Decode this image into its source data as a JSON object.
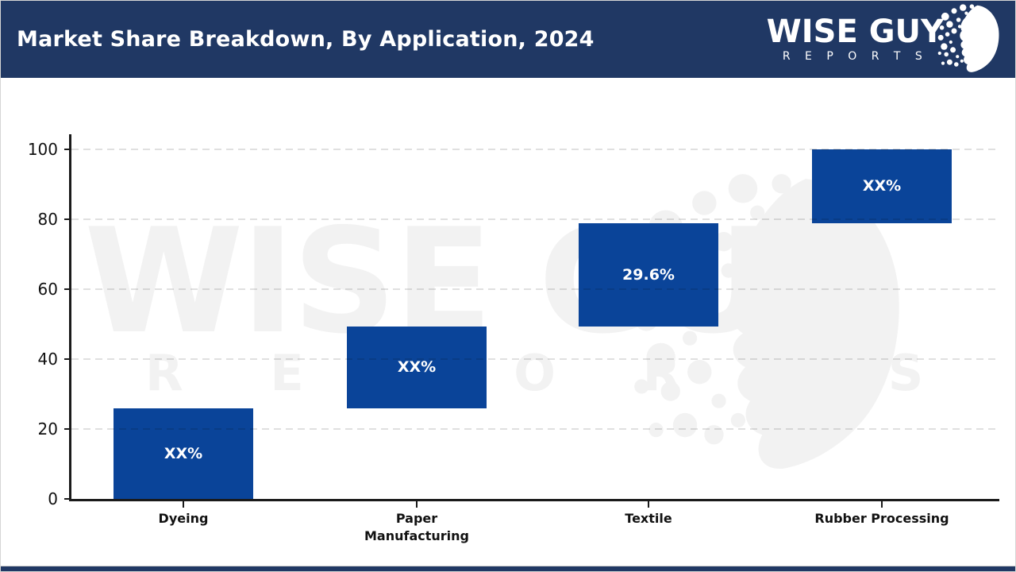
{
  "header": {
    "title": "Market Share Breakdown, By Application, 2024",
    "brand": {
      "name": "WISE GUY",
      "sub": "R E P O R T S"
    }
  },
  "watermark": {
    "line1": "WISE GUY",
    "line2": "R E P O R T S"
  },
  "colors": {
    "header_bg": "#203864",
    "footer_bg": "#203864",
    "bar": "#0a4499",
    "bar_label": "#ffffff",
    "axis": "#1a1a1a",
    "watermark": "#f2f2f2"
  },
  "chart_data": {
    "type": "bar",
    "subtype": "waterfall",
    "title": "Market Share Breakdown, By Application, 2024",
    "categories": [
      "Dyeing",
      "Paper\nManufacturing",
      "Textile",
      "Rubber Processing"
    ],
    "segments": [
      {
        "category": "Dyeing",
        "start": 0,
        "end": 26,
        "label": "XX%"
      },
      {
        "category": "Paper Manufacturing",
        "start": 26,
        "end": 49.3,
        "label": "XX%"
      },
      {
        "category": "Textile",
        "start": 49.3,
        "end": 78.9,
        "label": "29.6%"
      },
      {
        "category": "Rubber Processing",
        "start": 78.9,
        "end": 100,
        "label": "XX%"
      }
    ],
    "values_pct": [
      26,
      23.3,
      29.6,
      21.1
    ],
    "ylim": [
      0,
      100
    ],
    "yticks": [
      0,
      20,
      40,
      60,
      80,
      100
    ],
    "grid": "horizontal-dashed",
    "legend": "none"
  }
}
